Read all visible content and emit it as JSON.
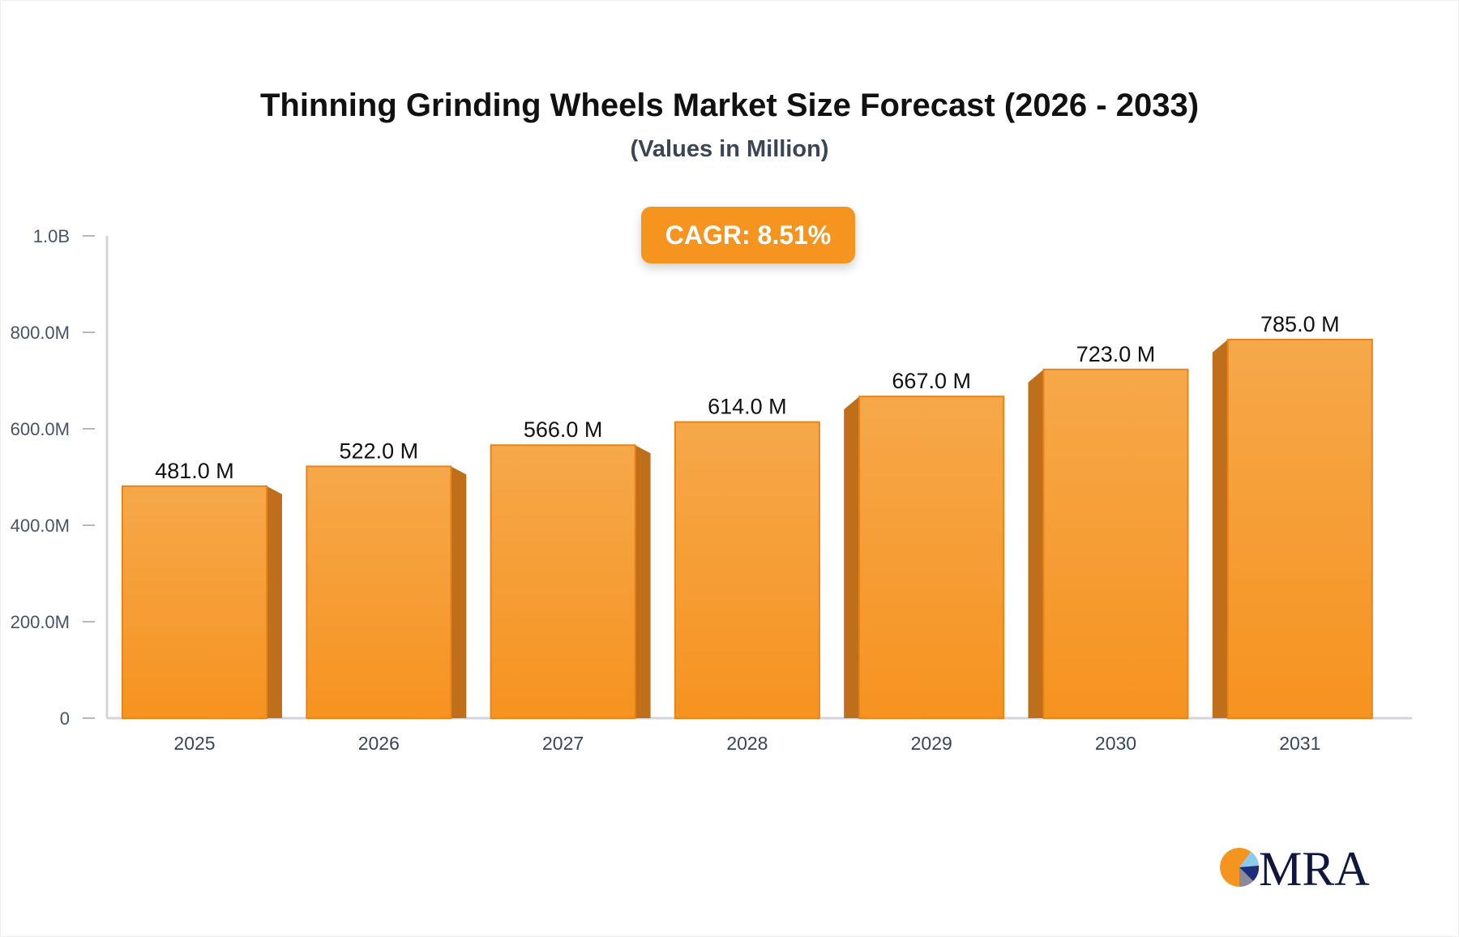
{
  "chart_data": {
    "type": "bar",
    "title": "Thinning Grinding Wheels Market Size Forecast (2026 - 2033)",
    "subtitle": "(Values in Million)",
    "categories": [
      "2025",
      "2026",
      "2027",
      "2028",
      "2029",
      "2030",
      "2031"
    ],
    "values": [
      481.0,
      522.0,
      566.0,
      614.0,
      667.0,
      723.0,
      785.0
    ],
    "data_labels": [
      "481.0 M",
      "522.0 M",
      "566.0 M",
      "614.0 M",
      "667.0 M",
      "723.0 M",
      "785.0 M"
    ],
    "ylim": [
      0,
      1000
    ],
    "yticks": [
      0,
      200,
      400,
      600,
      800,
      1000
    ],
    "ytick_labels": [
      "0",
      "200.0M",
      "400.0M",
      "600.0M",
      "800.0M",
      "1.0B"
    ],
    "xlabel": "",
    "ylabel": "",
    "grid": false,
    "bar_color": "#f5951f",
    "bar_side_color": "#bf6f1a"
  },
  "badge": {
    "label": "CAGR: 8.51%"
  },
  "logo": {
    "text": "MRA"
  }
}
